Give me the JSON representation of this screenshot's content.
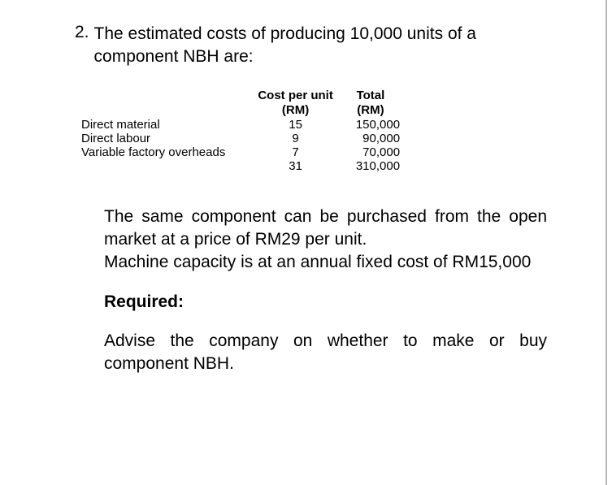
{
  "question": {
    "number": "2.",
    "text": "The estimated costs of producing 10,000 units of a component NBH are:"
  },
  "table": {
    "headers": {
      "col1": "",
      "col2_line1": "Cost per unit",
      "col2_line2": "(RM)",
      "col3_line1": "Total",
      "col3_line2": "(RM)"
    },
    "rows": [
      {
        "label": "Direct material",
        "unit": "15",
        "total": "150,000"
      },
      {
        "label": "Direct labour",
        "unit": "9",
        "total": "90,000"
      },
      {
        "label": "Variable factory overheads",
        "unit": "7",
        "total": "70,000"
      },
      {
        "label": "",
        "unit": "31",
        "total": "310,000"
      }
    ]
  },
  "paragraph1": "The same component can be purchased from the open market at a price of RM29 per unit.",
  "paragraph2": "Machine capacity is at an annual fixed cost of RM15,000",
  "required_label": "Required:",
  "required_text": "Advise the company on whether to make or buy component NBH.",
  "styling": {
    "page_bg": "#ffffff",
    "text_color": "#000000",
    "heading_fontsize": 21,
    "table_fontsize": 15,
    "edge_line_color": "#b8b8b8"
  }
}
